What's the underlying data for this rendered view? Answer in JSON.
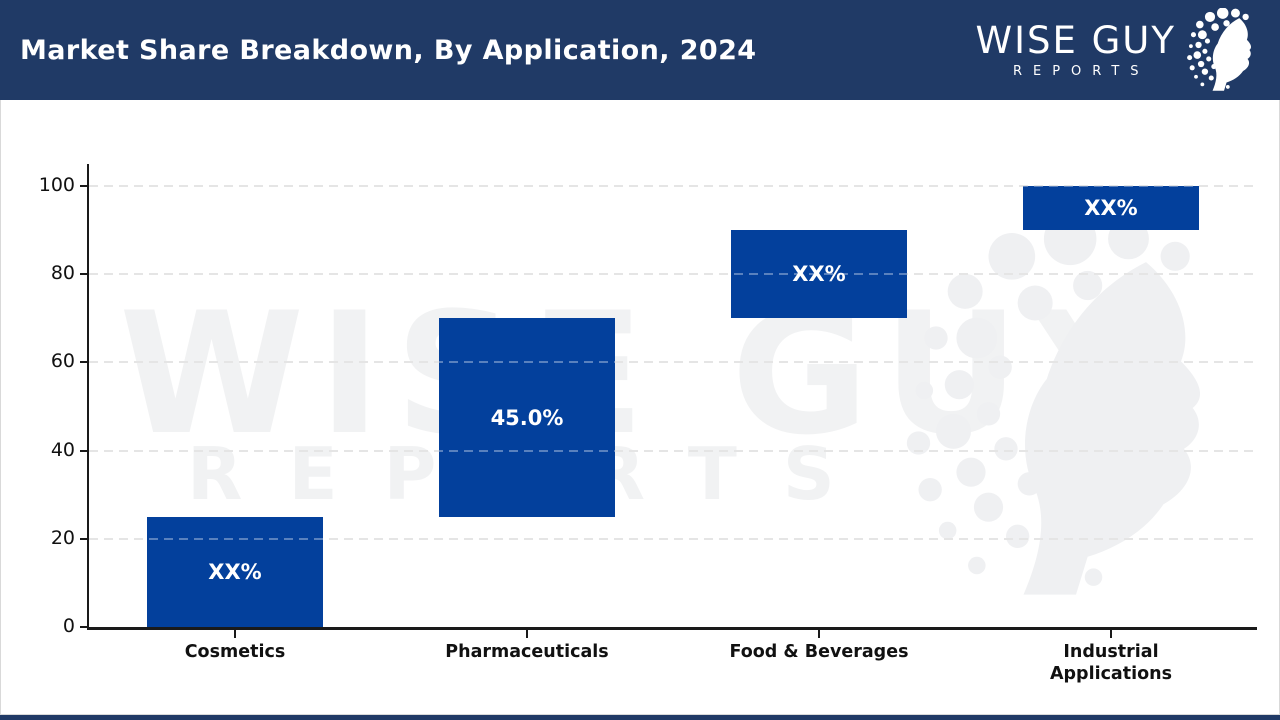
{
  "header": {
    "title": "Market Share Breakdown, By Application, 2024",
    "background_color": "#203a66",
    "logo": {
      "line1": "WISE GUY",
      "line2": "REPORTS"
    }
  },
  "watermark": {
    "line1": "WISE GUY",
    "line2": "REPORTS"
  },
  "colors": {
    "bar": "#03409c",
    "header_navy": "#203a66",
    "gridline": "#d8d8d8",
    "axis": "#1a1a1a",
    "bar_label_text": "#ffffff"
  },
  "chart_data": {
    "type": "bar",
    "variant": "floating-segment-waterfall",
    "title": "Market Share Breakdown, By Application, 2024",
    "categories": [
      "Cosmetics",
      "Pharmaceuticals",
      "Food & Beverages",
      "Industrial Applications"
    ],
    "segments": [
      {
        "category": "Cosmetics",
        "start": 0,
        "end": 25,
        "label": "XX%"
      },
      {
        "category": "Pharmaceuticals",
        "start": 25,
        "end": 70,
        "label": "45.0%"
      },
      {
        "category": "Food & Beverages",
        "start": 70,
        "end": 90,
        "label": "XX%"
      },
      {
        "category": "Industrial Applications",
        "start": 90,
        "end": 100,
        "label": "XX%"
      }
    ],
    "ylim": [
      0,
      100
    ],
    "yticks": [
      0,
      20,
      40,
      60,
      80,
      100
    ],
    "xlabel": "",
    "ylabel": "",
    "legend": "none",
    "grid": {
      "axis": "y",
      "style": "dashed"
    },
    "bar_color": "#03409c"
  }
}
